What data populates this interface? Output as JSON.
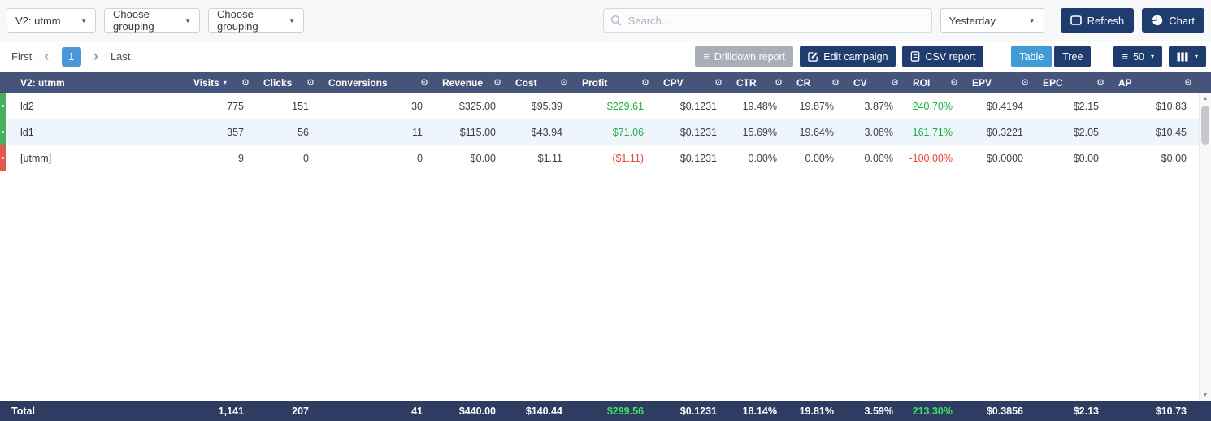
{
  "toolbar": {
    "campaign_select": {
      "value": "V2: utmm"
    },
    "grouping_selects": [
      "Choose grouping",
      "Choose grouping"
    ],
    "search": {
      "placeholder": "Search..."
    },
    "date_select": {
      "value": "Yesterday"
    },
    "refresh_button": "Refresh",
    "chart_button": "Chart"
  },
  "pagination": {
    "first": "First",
    "current_page": "1",
    "last": "Last"
  },
  "actions": {
    "drilldown_report": "Drilldown report",
    "edit_campaign": "Edit campaign",
    "csv_report": "CSV report",
    "table_view": "Table",
    "tree_view": "Tree",
    "rows_per_page": "50"
  },
  "table": {
    "name_header": "V2: utmm",
    "columns": [
      "Visits",
      "Clicks",
      "Conversions",
      "Revenue",
      "Cost",
      "Profit",
      "CPV",
      "CTR",
      "CR",
      "CV",
      "ROI",
      "EPV",
      "EPC",
      "AP"
    ],
    "rows": [
      {
        "name": "ld2",
        "status": "green",
        "values": [
          "775",
          "151",
          "30",
          "$325.00",
          "$95.39",
          "$229.61",
          "$0.1231",
          "19.48%",
          "19.87%",
          "3.87%",
          "240.70%",
          "$0.4194",
          "$2.15",
          "$10.83"
        ]
      },
      {
        "name": "ld1",
        "status": "green",
        "values": [
          "357",
          "56",
          "11",
          "$115.00",
          "$43.94",
          "$71.06",
          "$0.1231",
          "15.69%",
          "19.64%",
          "3.08%",
          "161.71%",
          "$0.3221",
          "$2.05",
          "$10.45"
        ]
      },
      {
        "name": "[utmm]",
        "status": "red",
        "values": [
          "9",
          "0",
          "0",
          "$0.00",
          "$1.11",
          "($1.11)",
          "$0.1231",
          "0.00%",
          "0.00%",
          "0.00%",
          "-100.00%",
          "$0.0000",
          "$0.00",
          "$0.00"
        ]
      }
    ],
    "total": {
      "label": "Total",
      "values": [
        "1,141",
        "207",
        "41",
        "$440.00",
        "$140.44",
        "$299.56",
        "$0.1231",
        "18.14%",
        "19.81%",
        "3.59%",
        "213.30%",
        "$0.3856",
        "$2.13",
        "$10.73"
      ]
    }
  },
  "colors": {
    "positive": "#1fae44",
    "negative": "#e8463c",
    "footer_positive": "#3fe063",
    "navy_button": "#1e3c6e",
    "header_bg": "#46537b",
    "footer_bg": "#2d3c60",
    "active_blue": "#419bd7"
  },
  "icons": {
    "gear": "⚙",
    "sort_desc": "▾",
    "list": "≡",
    "caret_down": "▼",
    "caret_down_small": "▾",
    "chevron_left": "‹",
    "chevron_right": "›",
    "arrow_up": "▲",
    "arrow_down": "▼"
  }
}
